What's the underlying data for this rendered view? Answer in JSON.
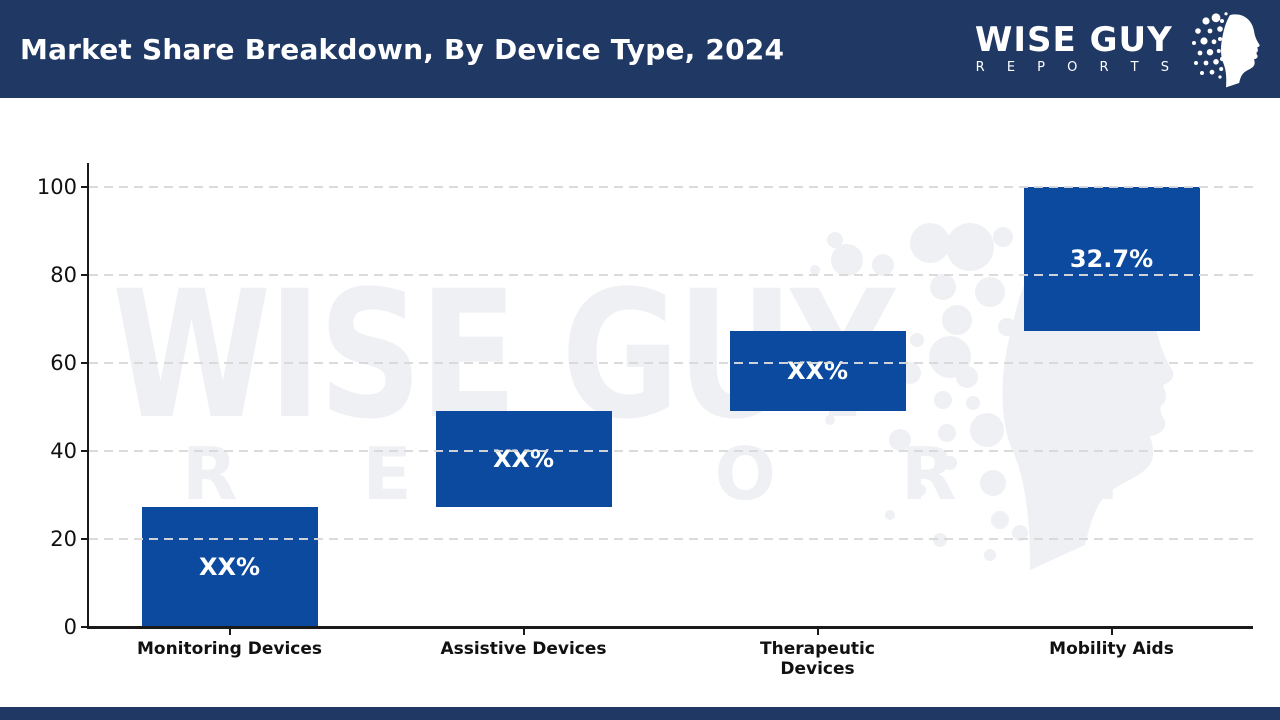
{
  "header": {
    "title": "Market Share Breakdown, By Device Type, 2024",
    "logo": {
      "line1": "WISE GUY",
      "line2": "R E P O R T S"
    }
  },
  "watermark": {
    "line1": "WISE GUY",
    "line2": "R E P O R T S"
  },
  "chart_data": {
    "type": "bar",
    "subtype": "waterfall",
    "title": "Market Share Breakdown, By Device Type, 2024",
    "categories": [
      "Monitoring Devices",
      "Assistive Devices",
      "Therapeutic\nDevices",
      "Mobility Aids"
    ],
    "values": [
      27.3,
      21.8,
      18.2,
      32.7
    ],
    "cumulative_start": [
      0,
      27.3,
      49.1,
      67.3
    ],
    "cumulative_end": [
      27.3,
      49.1,
      67.3,
      100
    ],
    "bar_labels": [
      "XX%",
      "XX%",
      "XX%",
      "32.7%"
    ],
    "ylabel": "",
    "xlabel": "",
    "ylim": [
      0,
      100
    ],
    "yticks": [
      0,
      20,
      40,
      60,
      80,
      100
    ],
    "grid": "horizontal-dashed",
    "legend": "none",
    "bar_color": "#0b4a9e",
    "bar_label_color": "#ffffff"
  },
  "colors": {
    "header_bg": "#1f3864",
    "footer_bg": "#1f3864",
    "grid": "#d9d9d9",
    "axis": "#1a1a1a",
    "watermark": "#eef0f3"
  }
}
